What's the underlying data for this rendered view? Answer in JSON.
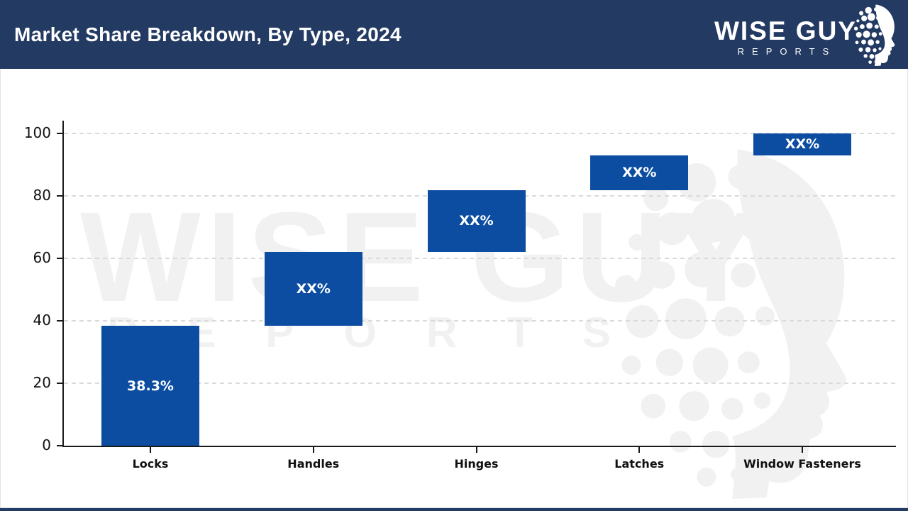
{
  "header": {
    "title": "Market Share Breakdown, By Type, 2024",
    "brand": {
      "line1": "WISE GUY",
      "line2": "REPORTS"
    }
  },
  "watermark": {
    "line1": "WISE GUY",
    "line2": "REPORTS"
  },
  "chart_data": {
    "type": "bar",
    "variant": "waterfall",
    "title": "Market Share Breakdown, By Type, 2024",
    "categories": [
      "Locks",
      "Handles",
      "Hinges",
      "Latches",
      "Window Fasteners"
    ],
    "segments": [
      {
        "category": "Locks",
        "start": 0,
        "end": 38.3,
        "label": "38.3%"
      },
      {
        "category": "Handles",
        "start": 38.3,
        "end": 62,
        "label": "XX%"
      },
      {
        "category": "Hinges",
        "start": 62,
        "end": 81.8,
        "label": "XX%"
      },
      {
        "category": "Latches",
        "start": 81.8,
        "end": 92.8,
        "label": "XX%"
      },
      {
        "category": "Window Fasteners",
        "start": 92.8,
        "end": 100,
        "label": "XX%"
      }
    ],
    "xlabel": "",
    "ylabel": "",
    "ylim": [
      0,
      105
    ],
    "yticks": [
      0,
      20,
      40,
      60,
      80,
      100
    ],
    "grid": "horizontal-dashed",
    "legend": "none",
    "bar_color": "#0C4DA2",
    "bar_label_color": "#FFFFFF"
  },
  "icons": {
    "brand_head": "wiseguy-head-icon",
    "watermark_head": "watermark-head-icon"
  },
  "colors": {
    "header_bg": "#233A63",
    "bar": "#0C4DA2",
    "grid": "#DADADA",
    "axis": "#1A1A1A",
    "text": "#111111",
    "watermark": "#F1F1F2",
    "footer_bar": "#233A63"
  }
}
